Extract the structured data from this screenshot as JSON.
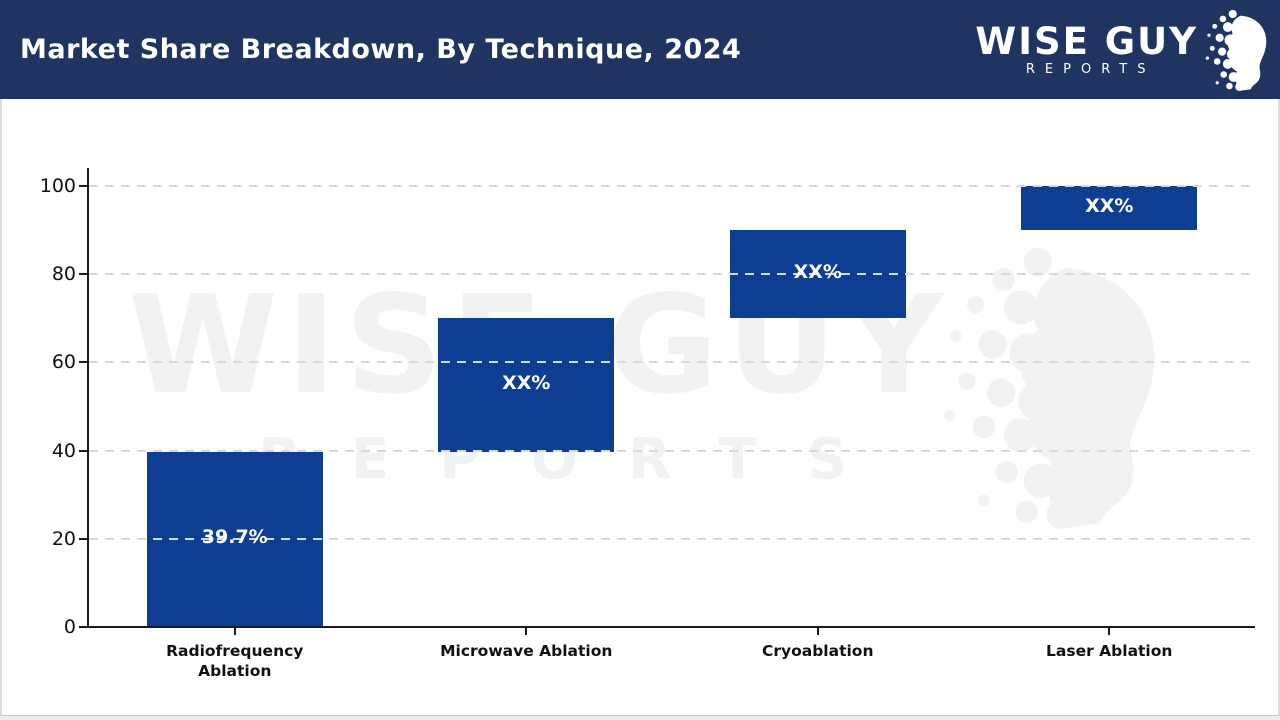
{
  "header": {
    "title": "Market Share Breakdown, By Technique, 2024",
    "logo": {
      "name": "WISE GUY",
      "sub": "REPORTS"
    }
  },
  "watermark": {
    "name": "WISE GUY",
    "sub": "REPORTS"
  },
  "colors": {
    "header_bg": "#203462",
    "bar_fill": "#0d3e91",
    "gridline": "#d8d8d8",
    "axis": "#1a1a1a",
    "bar_value_text": "#ffffff",
    "watermark": "#f2f2f2"
  },
  "chart_data": {
    "type": "bar",
    "subtype": "waterfall",
    "title": "Market Share Breakdown, By Technique, 2024",
    "xlabel": "",
    "ylabel": "",
    "categories": [
      "Radiofrequency Ablation",
      "Microwave Ablation",
      "Cryoablation",
      "Laser Ablation"
    ],
    "segments": [
      {
        "category": "Radiofrequency Ablation",
        "start": 0,
        "end": 39.7,
        "value_label": "39.7%"
      },
      {
        "category": "Microwave Ablation",
        "start": 39.7,
        "end": 70,
        "value_label": "XX%"
      },
      {
        "category": "Cryoablation",
        "start": 70,
        "end": 90,
        "value_label": "XX%"
      },
      {
        "category": "Laser Ablation",
        "start": 90,
        "end": 100,
        "value_label": "XX%"
      }
    ],
    "yticks": [
      0,
      20,
      40,
      60,
      80,
      100
    ],
    "ylim": [
      0,
      104
    ],
    "grid": "dashed-horizontal-above-bars",
    "legend": "none"
  }
}
